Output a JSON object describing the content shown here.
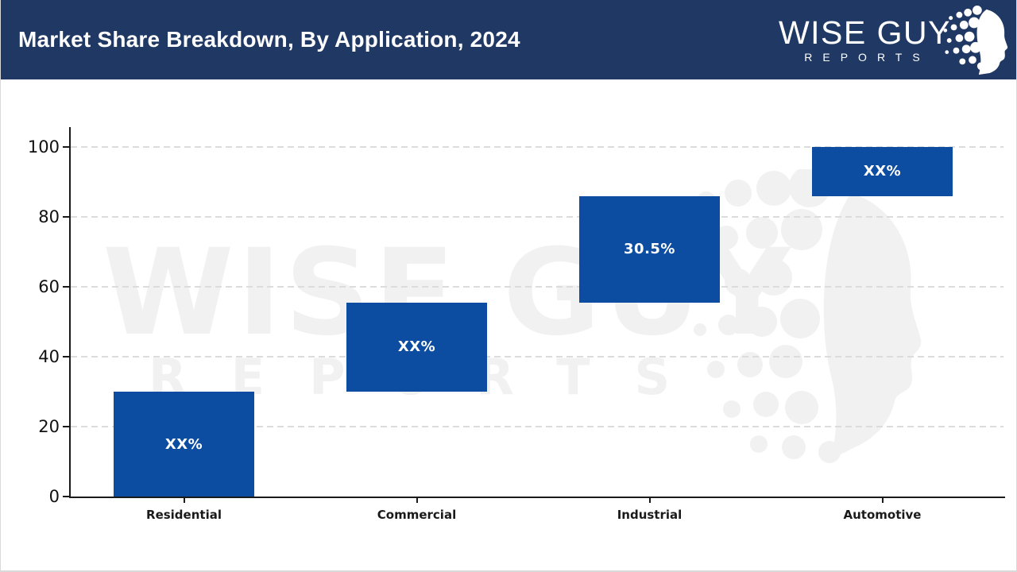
{
  "header": {
    "title": "Market Share Breakdown, By Application, 2024",
    "bg_color": "#1F3864",
    "logo": {
      "line1": "WISE GUY",
      "line2": "REPORTS"
    }
  },
  "watermark": {
    "line1": "WISE GUY",
    "line2": "REPORTS"
  },
  "chart_data": {
    "type": "bar",
    "subtype": "floating-waterfall",
    "title": "Market Share Breakdown, By Application, 2024",
    "categories": [
      "Residential",
      "Commercial",
      "Industrial",
      "Automotive"
    ],
    "series": [
      {
        "name": "Market Share (%)",
        "segments": [
          {
            "category": "Residential",
            "start": 0,
            "end": 30,
            "label": "XX%"
          },
          {
            "category": "Commercial",
            "start": 30,
            "end": 55.5,
            "label": "XX%"
          },
          {
            "category": "Industrial",
            "start": 55.5,
            "end": 86,
            "label": "30.5%"
          },
          {
            "category": "Automotive",
            "start": 86,
            "end": 100,
            "label": "XX%"
          }
        ]
      }
    ],
    "xlabel": "",
    "ylabel": "",
    "ylim": [
      0,
      100
    ],
    "yticks": [
      0,
      20,
      40,
      60,
      80,
      100
    ],
    "grid": "horizontal-dashed",
    "legend": "none",
    "bar_color": "#0C4DA2",
    "bar_label_color": "#FFFFFF",
    "axis_color": "#1a1a1a",
    "gridline_color": "#dcdcdc"
  }
}
